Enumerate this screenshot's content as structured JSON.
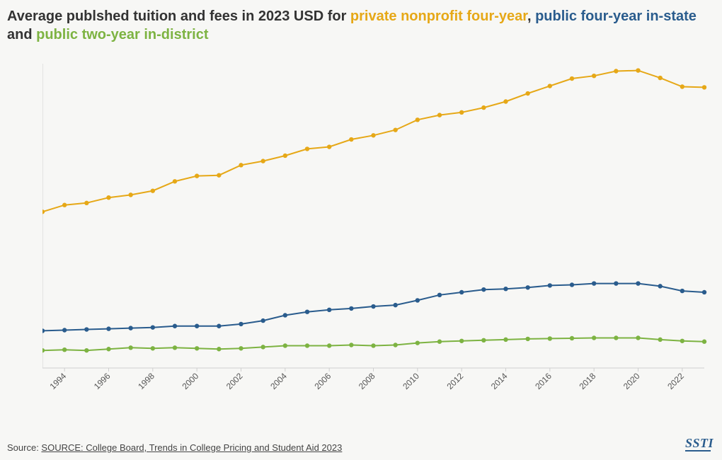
{
  "title": {
    "prefix": "Average publshed tuition and fees in 2023 USD for ",
    "series1": "private nonprofit four-year",
    "sep1": ", ",
    "series2": "public four-year in-state",
    "sep2": " and ",
    "series3": "public two-year in-district",
    "fontsize": 20,
    "fontweight": 700,
    "color": "#333333",
    "series1_color": "#e6a817",
    "series2_color": "#2a5c8d",
    "series3_color": "#7db342"
  },
  "chart": {
    "type": "line",
    "background_color": "#f7f7f5",
    "axis_line_color": "#cfcfcf",
    "axis_line_width": 1,
    "label_fontsize": 12,
    "label_color": "#555555",
    "marker_radius": 3.2,
    "line_width": 2,
    "x": {
      "min": 1993,
      "max": 2023,
      "tick_start": 1994,
      "tick_step": 2,
      "tick_count": 15,
      "label_rotate_deg": -45
    },
    "y": {
      "min": 0,
      "max": 45000,
      "tick_start": 0,
      "tick_step": 10000,
      "tick_count": 5,
      "format": "comma"
    },
    "years": [
      1993,
      1994,
      1995,
      1996,
      1997,
      1998,
      1999,
      2000,
      2001,
      2002,
      2003,
      2004,
      2005,
      2006,
      2007,
      2008,
      2009,
      2010,
      2011,
      2012,
      2013,
      2014,
      2015,
      2016,
      2017,
      2018,
      2019,
      2020,
      2021,
      2022,
      2023
    ],
    "series": [
      {
        "name": "private-nonprofit-four-year",
        "color": "#e6a817",
        "values": [
          23100,
          24100,
          24400,
          25200,
          25600,
          26200,
          27600,
          28400,
          28500,
          30000,
          30600,
          31400,
          32400,
          32700,
          33800,
          34400,
          35200,
          36700,
          37400,
          37800,
          38500,
          39400,
          40600,
          41700,
          42800,
          43200,
          43900,
          44000,
          42900,
          41600,
          41500
        ]
      },
      {
        "name": "public-four-year-in-state",
        "color": "#2a5c8d",
        "values": [
          5500,
          5600,
          5700,
          5800,
          5900,
          6000,
          6200,
          6200,
          6200,
          6500,
          7000,
          7800,
          8300,
          8600,
          8800,
          9100,
          9300,
          10000,
          10800,
          11200,
          11600,
          11700,
          11900,
          12200,
          12300,
          12500,
          12500,
          12500,
          12100,
          11400,
          11200
        ]
      },
      {
        "name": "public-two-year-in-district",
        "color": "#7db342",
        "values": [
          2600,
          2700,
          2600,
          2800,
          3000,
          2900,
          3000,
          2900,
          2800,
          2900,
          3100,
          3300,
          3300,
          3300,
          3400,
          3300,
          3400,
          3700,
          3900,
          4000,
          4100,
          4200,
          4300,
          4350,
          4400,
          4450,
          4450,
          4450,
          4200,
          4000,
          3900
        ]
      }
    ]
  },
  "footer": {
    "label": "Source: ",
    "text": "SOURCE: College Board, Trends in College Pricing and Student Aid 2023"
  },
  "logo": {
    "text": "SSTI",
    "color": "#2a5c8d"
  }
}
